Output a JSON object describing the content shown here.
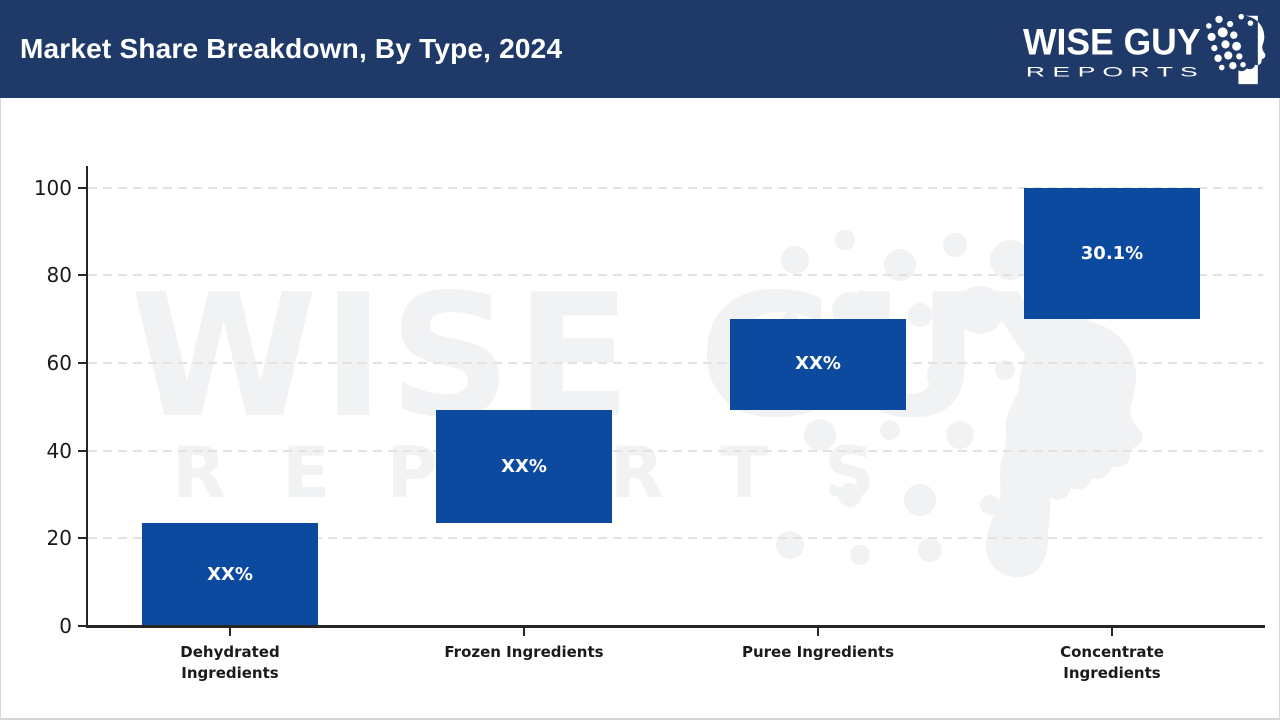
{
  "header": {
    "title": "Market Share Breakdown, By Type, 2024",
    "logo": {
      "name": "WISE GUY",
      "subtext": "R E P O R T S"
    }
  },
  "watermark": {
    "line1": "WISE GUY",
    "line2": "R E P O R T S"
  },
  "colors": {
    "header_bg": "#1f3968",
    "title_text": "#ffffff",
    "bar_blue": "#0c4a9f",
    "bar_label_text": "#ffffff",
    "axis": "#262626",
    "gridline": "#e2e2e2",
    "tick_text": "#1a1a1a",
    "watermark": "#f1f2f4",
    "panel_border": "#d6d6d6"
  },
  "icons": {
    "logo_face": "face-profile-made-of-dots",
    "watermark_face": "face-profile-made-of-dots"
  },
  "chart_data": {
    "type": "bar",
    "subtype": "floating-segment-waterfall",
    "title": "Market Share Breakdown, By Type, 2024",
    "categories": [
      "Dehydrated Ingredients",
      "Frozen Ingredients",
      "Puree Ingredients",
      "Concentrate Ingredients"
    ],
    "segments": [
      {
        "category": "Dehydrated Ingredients",
        "category_lines": [
          "Dehydrated",
          "Ingredients"
        ],
        "start": 0,
        "end": 23.5,
        "height": 23.5,
        "value_label": "XX%"
      },
      {
        "category": "Frozen Ingredients",
        "category_lines": [
          "Frozen Ingredients"
        ],
        "start": 23.5,
        "end": 49.3,
        "height": 25.8,
        "value_label": "XX%"
      },
      {
        "category": "Puree Ingredients",
        "category_lines": [
          "Puree Ingredients"
        ],
        "start": 49.3,
        "end": 69.9,
        "height": 20.6,
        "value_label": "XX%"
      },
      {
        "category": "Concentrate Ingredients",
        "category_lines": [
          "Concentrate",
          "Ingredients"
        ],
        "start": 69.9,
        "end": 100,
        "height": 30.1,
        "value_label": "30.1%"
      }
    ],
    "yticks": [
      0,
      20,
      40,
      60,
      80,
      100
    ],
    "ylim": [
      0,
      105
    ],
    "xlabel": "",
    "ylabel": "",
    "grid": "horizontal-dashed",
    "legend": "none"
  }
}
